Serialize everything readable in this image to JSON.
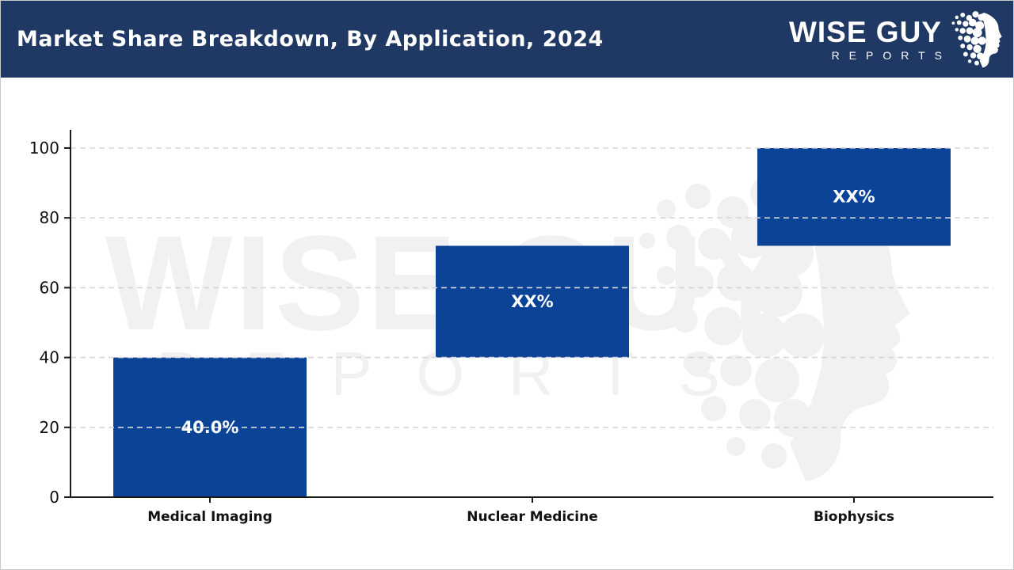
{
  "header": {
    "title": "Market Share Breakdown, By Application, 2024",
    "logo": {
      "line1": "WISE GUY",
      "line2": "REPORTS"
    }
  },
  "watermark": {
    "line1": "WISE GUY",
    "line2": "REPORTS"
  },
  "chart_data": {
    "type": "bar",
    "subtype": "floating-waterfall-segments",
    "title": "Market Share Breakdown, By Application, 2024",
    "categories": [
      "Medical Imaging",
      "Nuclear Medicine",
      "Biophysics"
    ],
    "bars": [
      {
        "category": "Medical Imaging",
        "start": 0,
        "end": 40,
        "label": "40.0%"
      },
      {
        "category": "Nuclear Medicine",
        "start": 40,
        "end": 72,
        "label": "XX%"
      },
      {
        "category": "Biophysics",
        "start": 72,
        "end": 100,
        "label": "XX%"
      }
    ],
    "xlabel": "",
    "ylabel": "",
    "yticks": [
      0,
      20,
      40,
      60,
      80,
      100
    ],
    "ylim": [
      0,
      105
    ],
    "grid": "horizontal-dashed",
    "grid_above_bars": true,
    "legend": "none"
  },
  "colors": {
    "header_bg": "#1f3864",
    "bar": "#0b4397",
    "bar_label": "#ffffff",
    "grid": "#d8d8d8",
    "axis": "#1a1a1a",
    "tick_text": "#111111",
    "watermark": "#f1f1f1"
  }
}
